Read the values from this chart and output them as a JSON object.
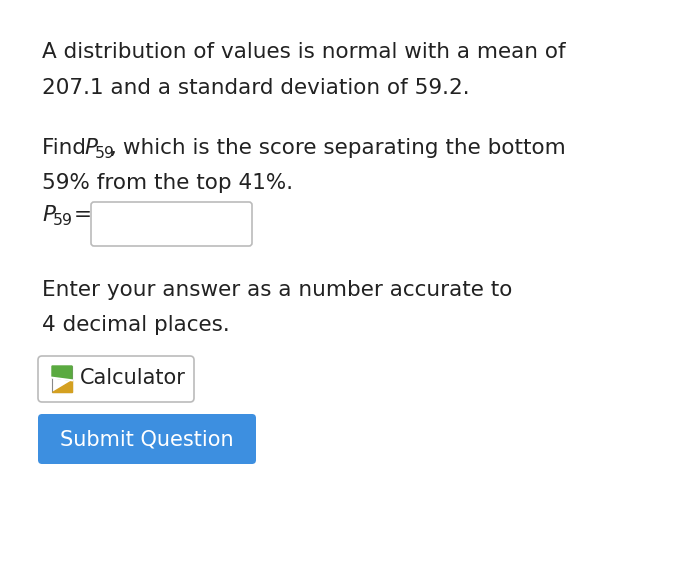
{
  "background_color": "#ffffff",
  "line1": "A distribution of values is normal with a mean of",
  "line2": "207.1 and a standard deviation of 59.2.",
  "line3_prefix": "Find ",
  "line3_P": "P",
  "line3_sub": "59",
  "line3_comma": ",",
  "line3_suffix": " which is the score separating the bottom",
  "line4": "59% from the top 41%.",
  "P_label_P": "P",
  "P_label_sub": "59",
  "line5": "Enter your answer as a number accurate to",
  "line6": "4 decimal places.",
  "calc_label": "Calculator",
  "submit_label": "Submit Question",
  "submit_bg": "#3d8fe0",
  "submit_text_color": "#ffffff",
  "calc_border_color": "#bbbbbb",
  "input_border_color": "#bbbbbb",
  "text_color": "#222222",
  "main_fontsize": 15.5,
  "submit_fontsize": 15,
  "calc_fontsize": 15
}
